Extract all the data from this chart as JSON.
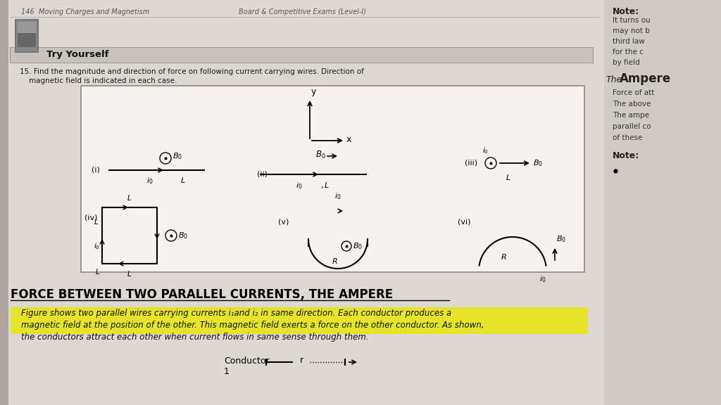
{
  "bg_color": "#c8c0b8",
  "page_color": "#ddd8d2",
  "right_panel_color": "#d0cac4",
  "header_left": "146  Moving Charges and Magnetism",
  "header_right": "Board & Competitive Exams (Level-I)",
  "try_yourself_title": "Try Yourself",
  "try_yourself_q1": "15. Find the magnitude and direction of force on following current carrying wires. Direction of",
  "try_yourself_q2": "    magnetic field is indicated in each case.",
  "section_title": "FORCE BETWEEN TWO PARALLEL CURRENTS, THE AMPERE",
  "para_line1": "Figure shows two parallel wires carrying currents i₁and i₂ in same direction. Each conductor produces a",
  "para_line2": "magnetic field at the position of the other. This magnetic field exerts a force on the other conductor. As shown,",
  "para_line3": "the conductors attract each other when current flows in same sense through them.",
  "conductor_label": "Conductor",
  "conductor_num": "1",
  "note_title": "Note:",
  "note_lines": [
    "It turns ou",
    "may not b",
    "third law",
    "for the c",
    "by field"
  ],
  "the_ampere_the": "The",
  "the_ampere_title": "Ampere",
  "ampere_lines": [
    "Force of att",
    "The above",
    "The ampe",
    "parallel co",
    "of these"
  ],
  "note2_title": "Note:",
  "highlight_color": "#e8e800",
  "diagram_bg": "#f5f2ef",
  "page_text_color": "#1a1a1a"
}
